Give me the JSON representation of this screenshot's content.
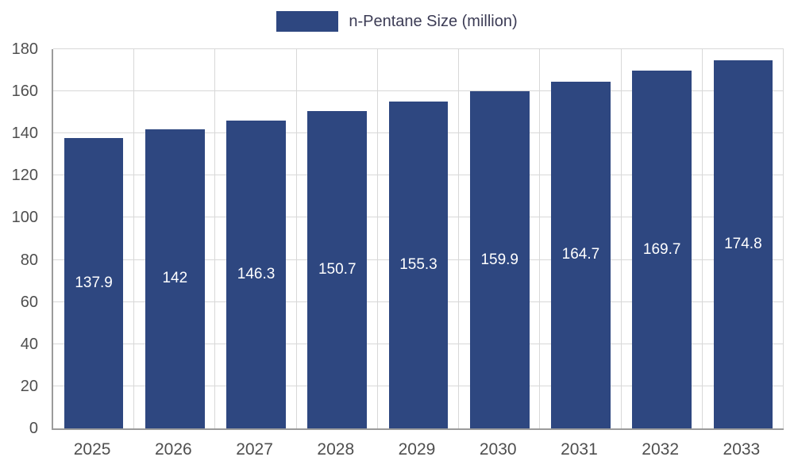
{
  "chart_data": {
    "type": "bar",
    "title": "",
    "legend": "n-Pentane Size (million)",
    "legend_position": "top",
    "categories": [
      "2025",
      "2026",
      "2027",
      "2028",
      "2029",
      "2030",
      "2031",
      "2032",
      "2033"
    ],
    "values": [
      137.9,
      142,
      146.3,
      150.7,
      155.3,
      159.9,
      164.7,
      169.7,
      174.8
    ],
    "value_labels": [
      "137.9",
      "142",
      "146.3",
      "150.7",
      "155.3",
      "159.9",
      "164.7",
      "169.7",
      "174.8"
    ],
    "xlabel": "",
    "ylabel": "",
    "ylim": [
      0,
      180
    ],
    "yticks": [
      0,
      20,
      40,
      60,
      80,
      100,
      120,
      140,
      160,
      180
    ],
    "grid": true,
    "colors": {
      "bar": "#2E4780",
      "grid": "#D8D8D8",
      "axis": "#9B9B9B",
      "tick_label": "#4F4F4F",
      "value_label": "#FFFFFF",
      "legend_text": "#3C3C55",
      "background": "#FFFFFF"
    }
  }
}
